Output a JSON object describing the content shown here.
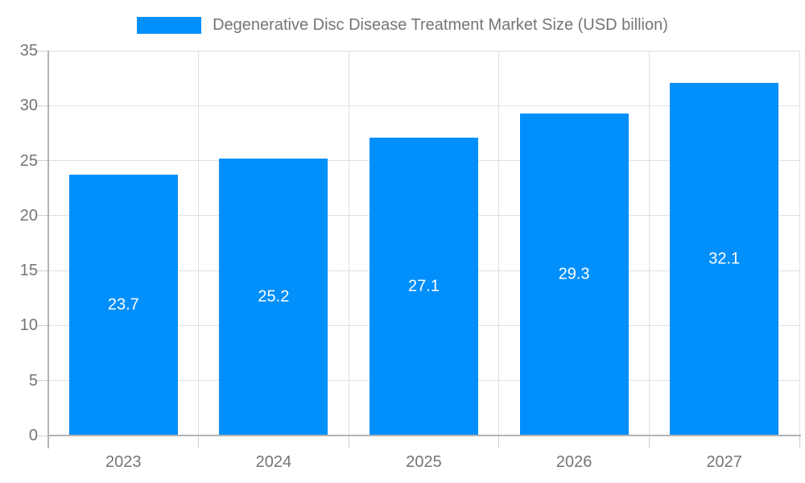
{
  "legend": {
    "label": "Degenerative Disc Disease Treatment Market Size (USD billion)"
  },
  "chart_data": {
    "type": "bar",
    "title": "Degenerative Disc Disease Treatment Market Size (USD billion)",
    "categories": [
      "2023",
      "2024",
      "2025",
      "2026",
      "2027"
    ],
    "values": [
      23.7,
      25.2,
      27.1,
      29.3,
      32.1
    ],
    "data_labels": [
      "23.7",
      "25.2",
      "27.1",
      "29.3",
      "32.1"
    ],
    "xlabel": "",
    "ylabel": "",
    "ylim": [
      0,
      35
    ],
    "yticks": [
      0,
      5,
      10,
      15,
      20,
      25,
      30,
      35
    ],
    "grid": "horizontal-gridlines-and-vertical-category-boundary-gridlines",
    "legend_position": "top-center",
    "colors": {
      "bar": "#008FFB",
      "axis_line": "#b3b3b3",
      "gridline": "#e0e0e0",
      "tick": "#d0d0d0",
      "label_text": "#757575",
      "data_label_text": "#ffffff",
      "background": "#ffffff"
    }
  }
}
